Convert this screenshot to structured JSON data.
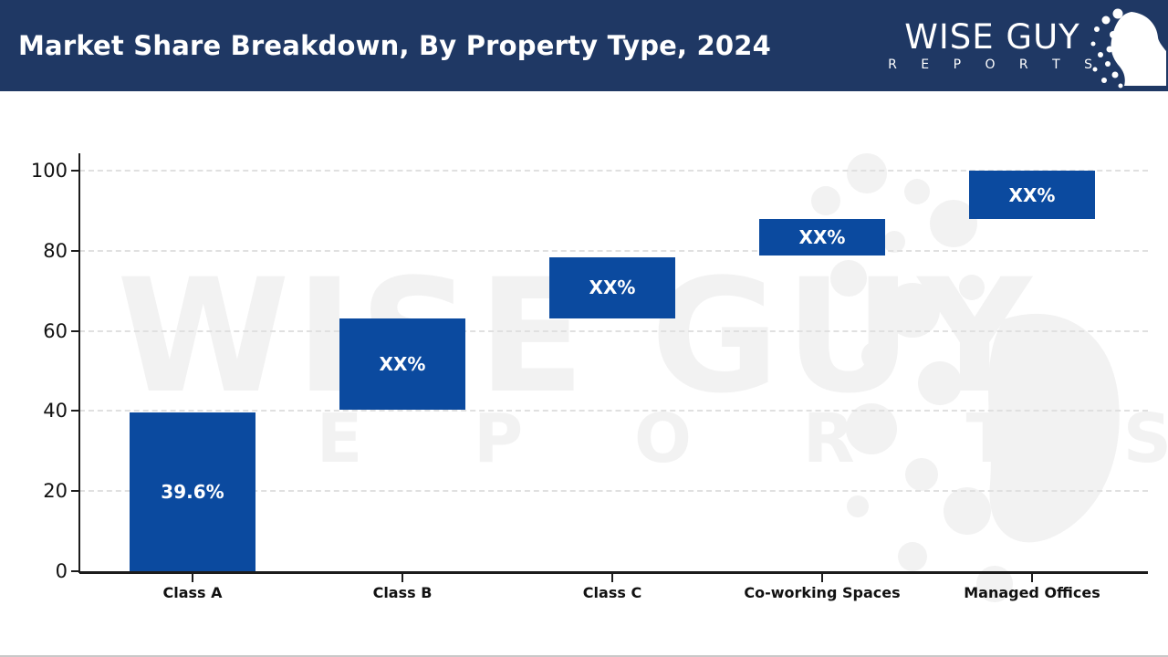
{
  "header": {
    "title": "Market Share Breakdown, By Property Type, 2024",
    "logo": {
      "wordmark": "WISE GUY",
      "subtext": "REPORTS"
    },
    "bg_color": "#1f3864"
  },
  "watermark": {
    "line1": "WISE GUY",
    "line2": "R E P O R T S"
  },
  "chart_data": {
    "type": "bar",
    "subtype": "waterfall",
    "title": "Market Share Breakdown, By Property Type, 2024",
    "unit": "%",
    "categories": [
      "Class A",
      "Class B",
      "Class C",
      "Co-working Spaces",
      "Managed Offices"
    ],
    "segments": [
      {
        "category": "Class A",
        "start": 0,
        "end": 39.6,
        "label": "39.6%"
      },
      {
        "category": "Class B",
        "start": 40.3,
        "end": 63.1,
        "label": "XX%"
      },
      {
        "category": "Class C",
        "start": 63.1,
        "end": 78.4,
        "label": "XX%"
      },
      {
        "category": "Co-working Spaces",
        "start": 78.8,
        "end": 87.9,
        "label": "XX%"
      },
      {
        "category": "Managed Offices",
        "start": 87.9,
        "end": 100,
        "label": "XX%"
      }
    ],
    "ylim": [
      0,
      100
    ],
    "yticks": [
      0,
      20,
      40,
      60,
      80,
      100
    ],
    "grid": "horizontal-dashed",
    "legend": "none",
    "colors": {
      "bar": "#0b4a9f",
      "bar_label": "#ffffff",
      "axis": "#1c1c1c",
      "gridline": "#e0e0e0",
      "header_bg": "#1f3864",
      "watermark": "#f2f2f2"
    }
  }
}
